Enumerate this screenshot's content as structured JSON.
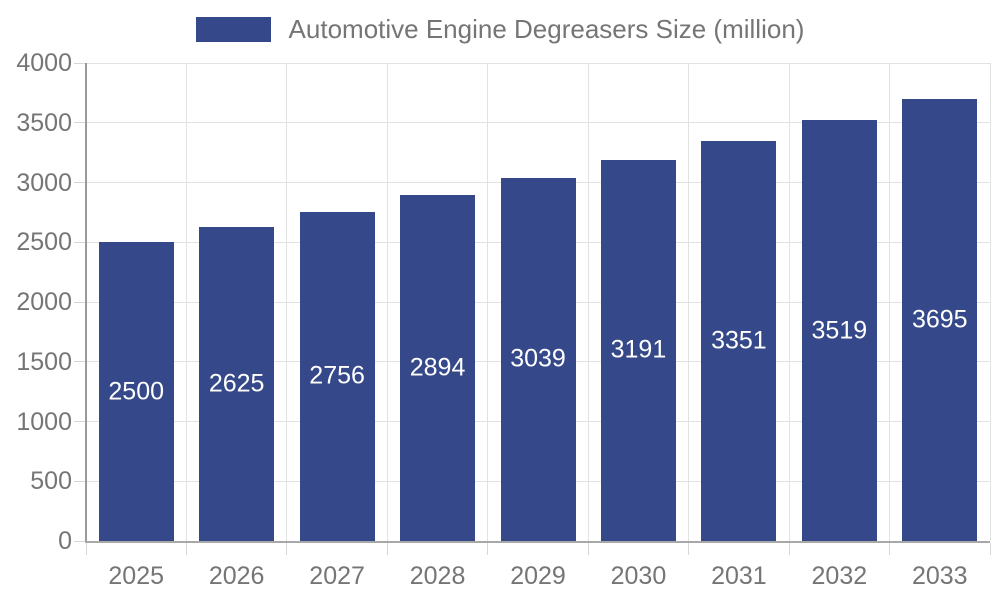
{
  "chart_data": {
    "type": "bar",
    "title": "Automotive Engine Degreasers Size (million)",
    "legend": [
      "Automotive Engine Degreasers Size (million)"
    ],
    "legend_position": "top",
    "categories": [
      "2025",
      "2026",
      "2027",
      "2028",
      "2029",
      "2030",
      "2031",
      "2032",
      "2033"
    ],
    "values": [
      2500,
      2625,
      2756,
      2894,
      3039,
      3191,
      3351,
      3519,
      3695
    ],
    "xlabel": "",
    "ylabel": "",
    "ylim": [
      0,
      4000
    ],
    "yticks": [
      0,
      500,
      1000,
      1500,
      2000,
      2500,
      3000,
      3500,
      4000
    ],
    "grid": true,
    "bar_color": "#35488A",
    "bar_label_color": "#ffffff",
    "axis_text_color": "#757575"
  }
}
